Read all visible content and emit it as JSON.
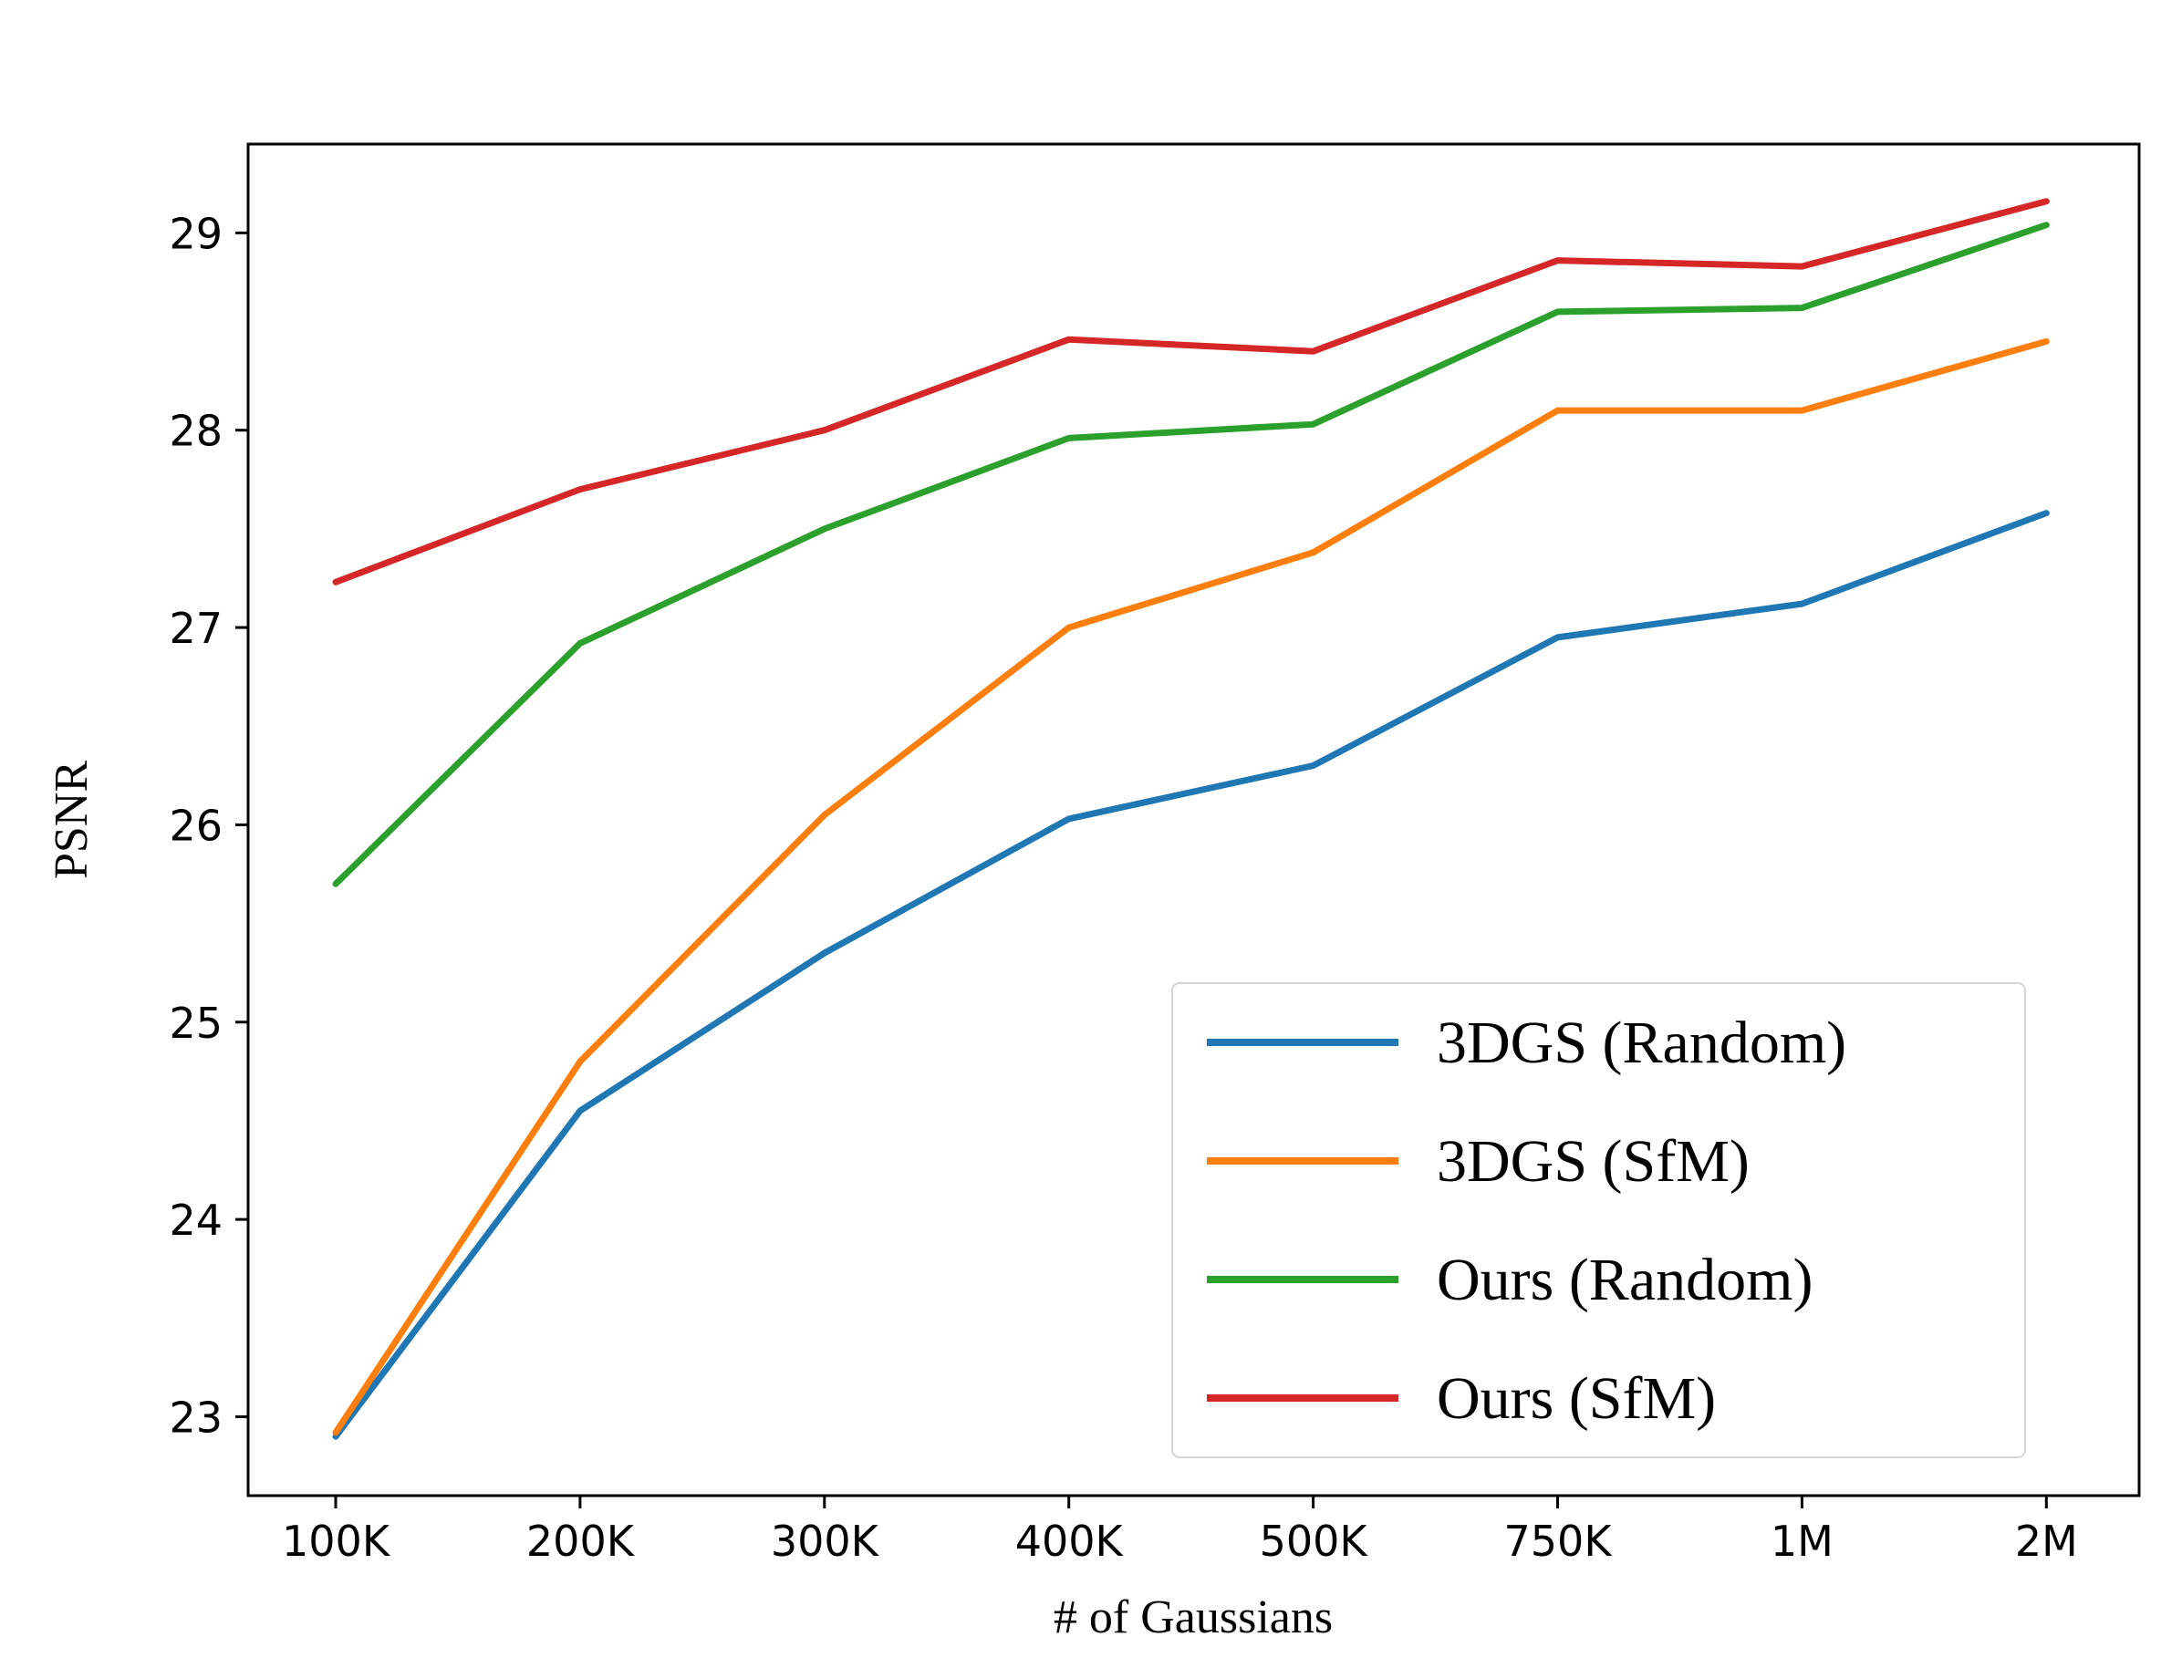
{
  "chart_data": {
    "type": "line",
    "title": "",
    "xlabel": "# of Gaussians",
    "ylabel": "PSNR",
    "categories": [
      "100K",
      "200K",
      "300K",
      "400K",
      "500K",
      "750K",
      "1M",
      "2M"
    ],
    "y_ticks": [
      23,
      24,
      25,
      26,
      27,
      28,
      29
    ],
    "ylim": [
      22.6,
      29.45
    ],
    "grid": false,
    "legend_position": "lower right",
    "series": [
      {
        "name": "3DGS (Random)",
        "color": "#1f77b4",
        "values": [
          22.9,
          24.55,
          25.35,
          26.03,
          26.3,
          26.95,
          27.12,
          27.58
        ]
      },
      {
        "name": "3DGS  (SfM)",
        "color": "#ff7f0e",
        "values": [
          22.92,
          24.8,
          26.05,
          27.0,
          27.38,
          28.1,
          28.1,
          28.45
        ]
      },
      {
        "name": "Ours (Random)",
        "color": "#2ca02c",
        "values": [
          25.7,
          26.92,
          27.5,
          27.96,
          28.03,
          28.6,
          28.62,
          29.04
        ]
      },
      {
        "name": "Ours (SfM)",
        "color": "#d62728",
        "values": [
          27.23,
          27.7,
          28.0,
          28.46,
          28.4,
          28.86,
          28.83,
          29.16
        ]
      }
    ]
  }
}
